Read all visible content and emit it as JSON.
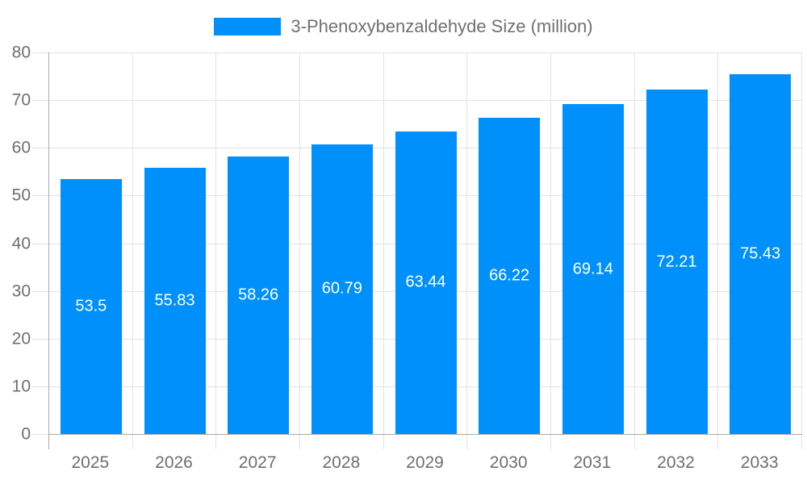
{
  "legend": {
    "label": "3-Phenoxybenzaldehyde Size (million)"
  },
  "colors": {
    "bar": "#0090fb",
    "grid": "#e2e2e2",
    "axis": "#aaaaaa",
    "tick_label": "#6e6e6e",
    "legend_text": "#707070",
    "value_label": "#ffffff"
  },
  "chart_data": {
    "type": "bar",
    "title": "",
    "xlabel": "",
    "ylabel": "",
    "categories": [
      "2025",
      "2026",
      "2027",
      "2028",
      "2029",
      "2030",
      "2031",
      "2032",
      "2033"
    ],
    "series": [
      {
        "name": "3-Phenoxybenzaldehyde Size (million)",
        "values": [
          53.5,
          55.83,
          58.26,
          60.79,
          63.44,
          66.22,
          69.14,
          72.21,
          75.43
        ]
      }
    ],
    "value_labels": [
      "53.5",
      "55.83",
      "58.26",
      "60.79",
      "63.44",
      "66.22",
      "69.14",
      "72.21",
      "75.43"
    ],
    "ylim": [
      0,
      80
    ],
    "yticks": [
      0,
      10,
      20,
      30,
      40,
      50,
      60,
      70,
      80
    ],
    "grid": true,
    "legend_position": "top",
    "value_label_position": "inside-center"
  }
}
